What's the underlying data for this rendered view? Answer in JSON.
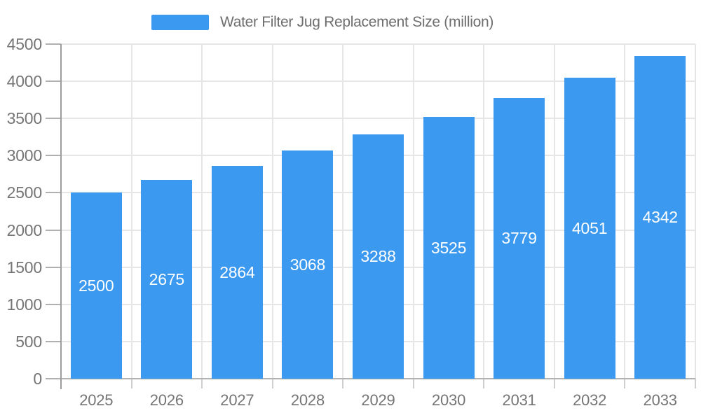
{
  "legend": {
    "label": "Water Filter Jug Replacement Size (million)"
  },
  "chart_data": {
    "type": "bar",
    "title": "Water Filter Jug Replacement Size (million)",
    "series_name": "Water Filter Jug Replacement Size (million)",
    "categories": [
      "2025",
      "2026",
      "2027",
      "2028",
      "2029",
      "2030",
      "2031",
      "2032",
      "2033"
    ],
    "values": [
      2500,
      2675,
      2864,
      3068,
      3288,
      3525,
      3779,
      4051,
      4342
    ],
    "data_labels": [
      "2500",
      "2675",
      "2864",
      "3068",
      "3288",
      "3525",
      "3779",
      "4051",
      "4342"
    ],
    "xlabel": "",
    "ylabel": "",
    "ylim": [
      0,
      4500
    ],
    "ytick_step": 500,
    "yticks": [
      "0",
      "500",
      "1000",
      "1500",
      "2000",
      "2500",
      "3000",
      "3500",
      "4000",
      "4500"
    ],
    "grid": true,
    "legend_position": "top-center",
    "data_label_position": "inside-center",
    "colors": {
      "bar": "#3B99F0",
      "data_label": "#FFFFFF",
      "axis_label": "#757575",
      "legend_text": "#6E6E6E",
      "grid_line": "#E6E6E6",
      "y_axis_line": "#9E9E9E",
      "x_axis_line": "#B3B3B3",
      "y_tick": "#B0B0B0",
      "x_tick": "#CFCFCF",
      "background": "#FFFFFF"
    }
  }
}
